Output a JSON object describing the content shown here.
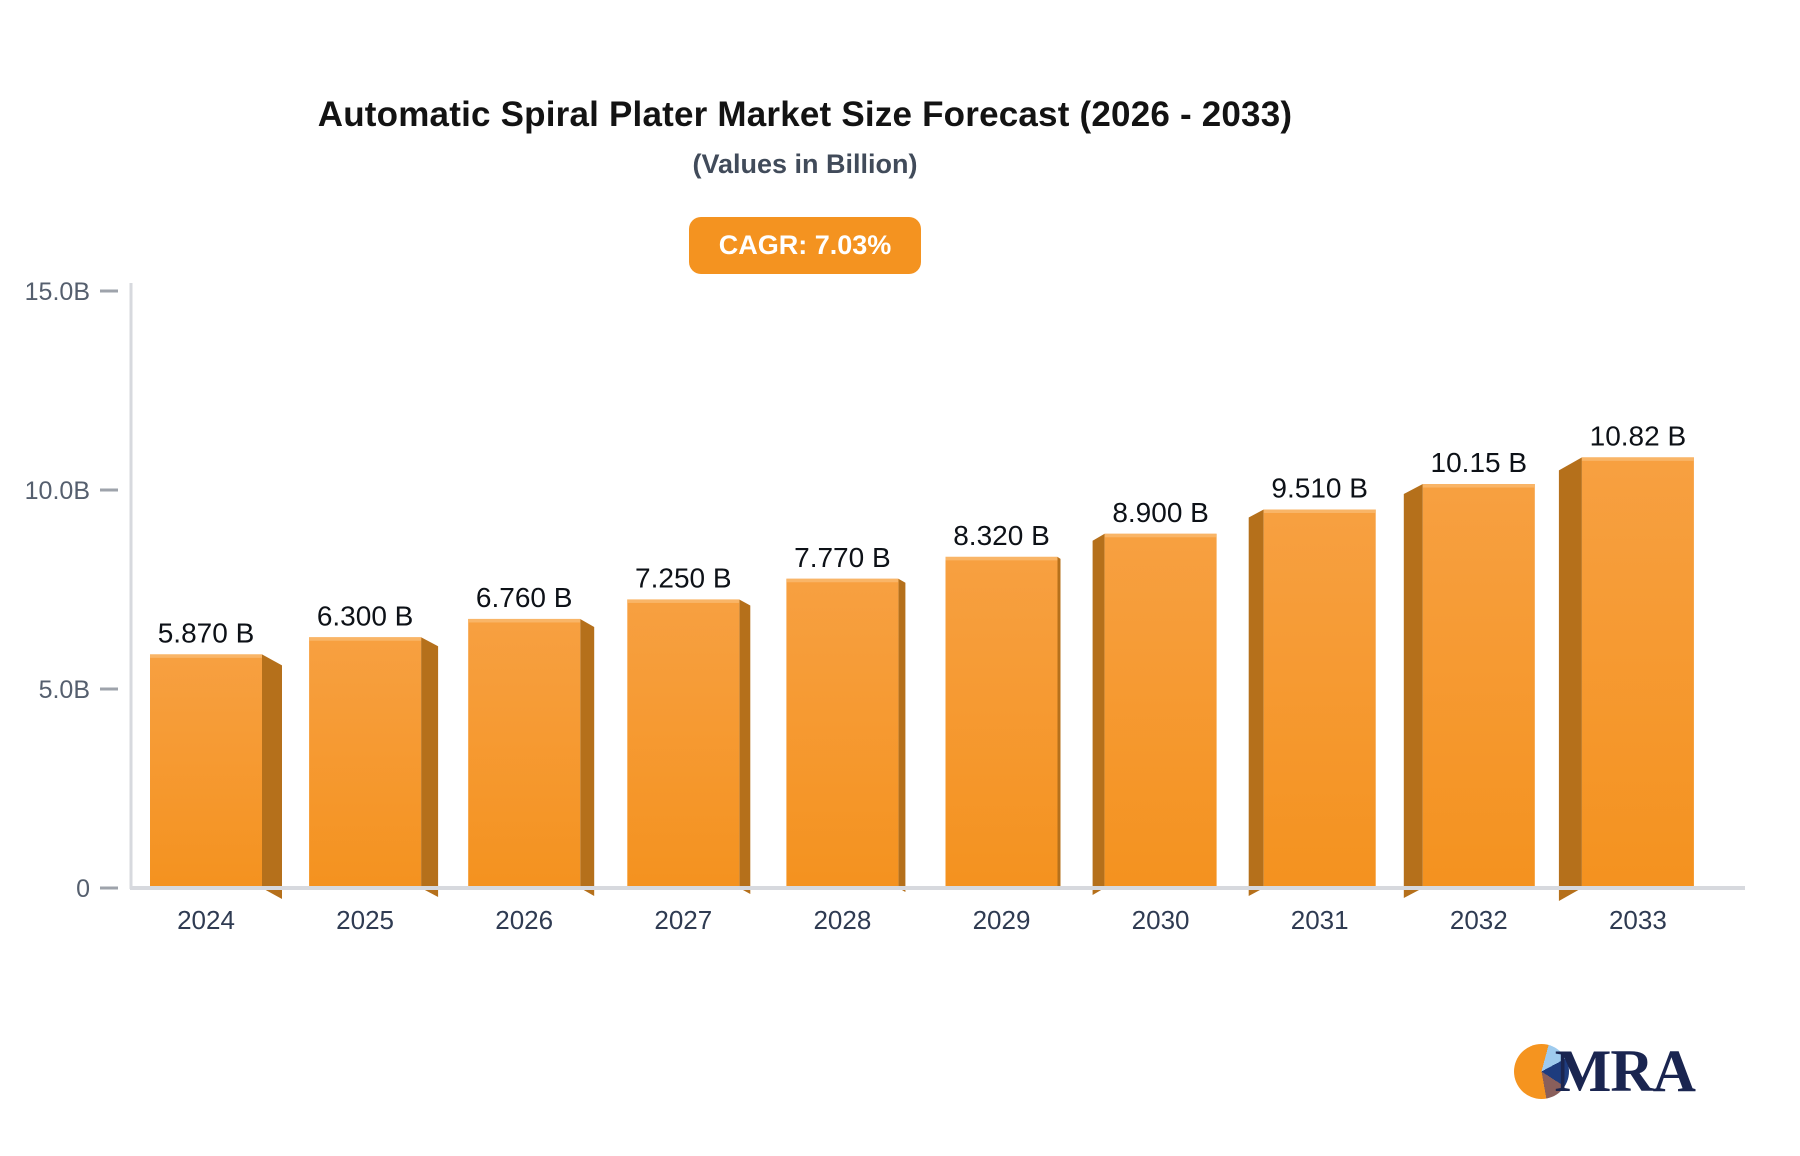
{
  "header": {
    "title": "Automatic Spiral Plater Market Size Forecast (2026 - 2033)",
    "subtitle": "(Values in Billion)",
    "cagr_badge": "CAGR: 7.03%"
  },
  "chart_data": {
    "type": "bar",
    "title": "Automatic Spiral Plater Market Size Forecast (2026 - 2033)",
    "subtitle": "(Values in Billion)",
    "cagr": "7.03%",
    "categories": [
      "2024",
      "2025",
      "2026",
      "2027",
      "2028",
      "2029",
      "2030",
      "2031",
      "2032",
      "2033"
    ],
    "values": [
      5.87,
      6.3,
      6.76,
      7.25,
      7.77,
      8.32,
      8.9,
      9.51,
      10.15,
      10.82
    ],
    "value_labels": [
      "5.870 B",
      "6.300 B",
      "6.760 B",
      "7.250 B",
      "7.770 B",
      "8.320 B",
      "8.900 B",
      "9.510 B",
      "10.15 B",
      "10.82 B"
    ],
    "xlabel": "",
    "ylabel": "",
    "ylim": [
      0,
      15
    ],
    "yticks": [
      {
        "value": 0,
        "label": "0"
      },
      {
        "value": 5,
        "label": "5.0B"
      },
      {
        "value": 10,
        "label": "10.0B"
      },
      {
        "value": 15,
        "label": "15.0B"
      }
    ],
    "grid": false,
    "legend": false,
    "bar_style": "3d-perspective-orange"
  },
  "colors": {
    "bar_front_top": "#F7A041",
    "bar_front_bottom": "#F4921F",
    "bar_top_highlight": "#F9B567",
    "bar_side": "#B5701B",
    "badge_bg": "#F49320",
    "badge_text": "#FFFFFF",
    "axis_line": "#D7D9DE",
    "tick_dash": "#9EA3AB",
    "ytick_text": "#555F6E",
    "xtick_text": "#2F3B52",
    "value_text": "#0D1117",
    "logo_text": "#1A2550",
    "logo_pie": [
      "#9ECBEE",
      "#1E3C7E",
      "#8A5F5B",
      "#F5941F"
    ]
  },
  "logo": {
    "text": "MRA",
    "icon": "pie-chart-icon"
  }
}
